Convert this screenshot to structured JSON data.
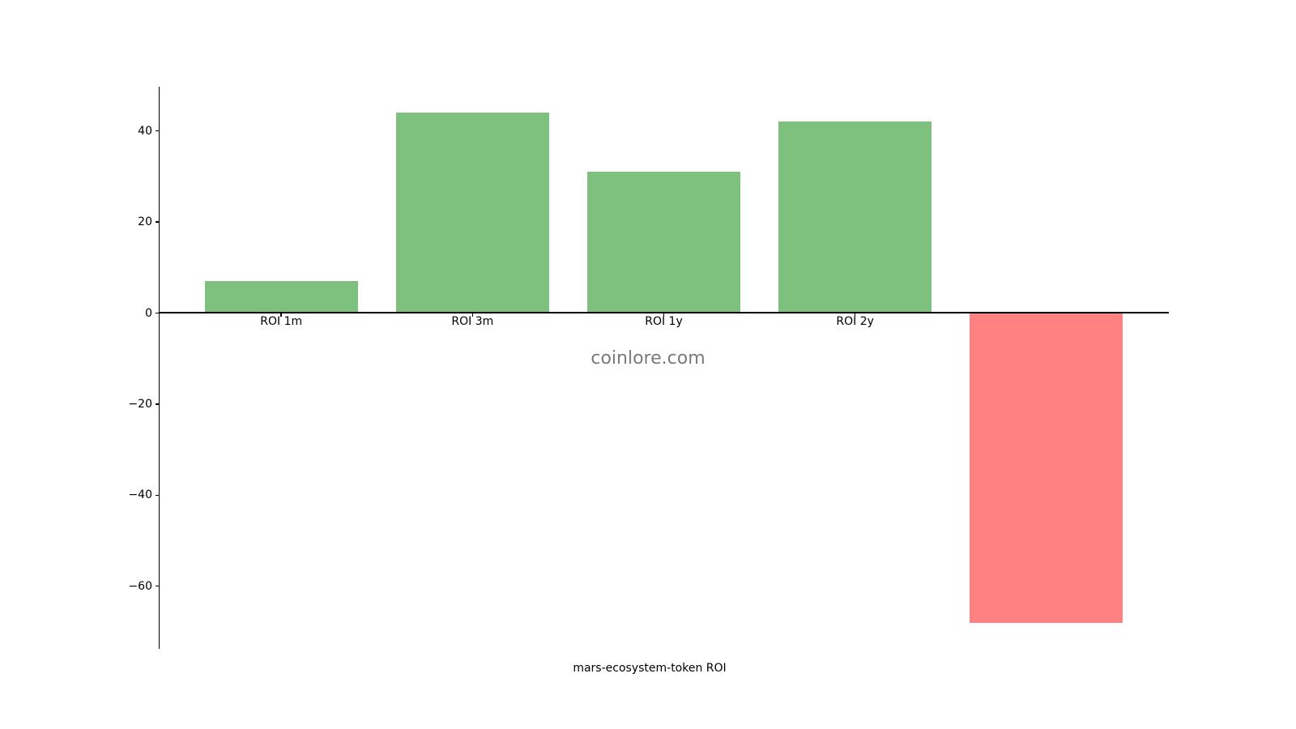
{
  "chart_data": {
    "type": "bar",
    "title": "mars-ecosystem-token ROI",
    "title_position": "bottom",
    "watermark": "coinlore.com",
    "categories": [
      "ROI 1m",
      "ROI 3m",
      "ROI 1y",
      "ROI 2y",
      ""
    ],
    "values": [
      7,
      44,
      31,
      42,
      -68
    ],
    "positive_color": "#7ec17e",
    "negative_color": "#ff8181",
    "axis_color": "#000000",
    "text_color": "#000000",
    "watermark_color": "#7a7a7a",
    "xlabel": "",
    "ylabel": "",
    "ylim": [
      -74,
      50
    ],
    "y_ticks": [
      {
        "v": 40,
        "label": "40"
      },
      {
        "v": 20,
        "label": "20"
      },
      {
        "v": 0,
        "label": "0"
      },
      {
        "v": -20,
        "label": "−20"
      },
      {
        "v": -40,
        "label": "−40"
      },
      {
        "v": -60,
        "label": "−60"
      }
    ],
    "grid": false,
    "legend": false
  }
}
